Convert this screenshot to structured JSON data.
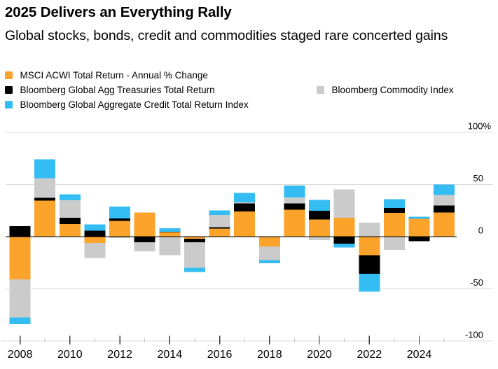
{
  "header": {
    "title": "2025 Delivers an Everything Rally",
    "subtitle": "Global stocks, bonds, credit and commodities staged rare concerted gains"
  },
  "chart_data": {
    "type": "bar",
    "stacked": true,
    "title": "2025 Delivers an Everything Rally",
    "subtitle": "Global stocks, bonds, credit and commodities staged rare concerted gains",
    "unit": "%",
    "grid": true,
    "legend_position": "top",
    "categories": [
      "2008",
      "2009",
      "2010",
      "2011",
      "2012",
      "2013",
      "2014",
      "2015",
      "2016",
      "2017",
      "2018",
      "2019",
      "2020",
      "2021",
      "2022",
      "2023",
      "2024",
      "2025"
    ],
    "series": [
      {
        "name": "MSCI ACWI Total Return - Annual % Change",
        "color": "#FCA32B",
        "values": [
          -41.0,
          34.5,
          12.2,
          -6.0,
          15.0,
          23.0,
          4.2,
          -2.0,
          7.8,
          24.0,
          -9.3,
          25.7,
          16.4,
          18.2,
          -17.8,
          23.0,
          17.1,
          23.3
        ]
      },
      {
        "name": "Bloomberg Global Agg Treasuries Total Return",
        "color": "#000000",
        "values": [
          10.0,
          2.7,
          6.0,
          5.8,
          2.3,
          -5.5,
          0.5,
          -3.3,
          1.4,
          7.8,
          0,
          6.3,
          8.4,
          -6.7,
          -17.8,
          4.4,
          -4.2,
          6.7
        ]
      },
      {
        "name": "Bloomberg Commodity Index",
        "color": "#CBCBCB",
        "values": [
          -36.5,
          18.9,
          16.7,
          -14.5,
          -1.5,
          -8.5,
          -17.8,
          -24.5,
          11.5,
          1.0,
          -13.2,
          5.5,
          -3.5,
          27.1,
          13.4,
          -12.9,
          0,
          10.0
        ]
      },
      {
        "name": "Bloomberg Global Aggregate Credit Total Return Index",
        "color": "#33BDF2",
        "values": [
          -6.5,
          18.0,
          5.6,
          6.0,
          11.5,
          0,
          3.2,
          -4.0,
          4.4,
          9.1,
          -2.9,
          11.5,
          10.4,
          -3.6,
          -17.1,
          8.5,
          1.9,
          10.0
        ]
      }
    ],
    "y_axis": {
      "side": "right",
      "range": [
        -100,
        100
      ],
      "ticks": [
        {
          "value": 100,
          "label": "100%"
        },
        {
          "value": 50,
          "label": "50"
        },
        {
          "value": 0,
          "label": "0"
        },
        {
          "value": -50,
          "label": "-50"
        },
        {
          "value": -100,
          "label": "-100"
        }
      ]
    },
    "x_axis": {
      "labeled_categories": [
        "2008",
        "2010",
        "2012",
        "2014",
        "2016",
        "2018",
        "2020",
        "2022",
        "2024"
      ]
    }
  }
}
